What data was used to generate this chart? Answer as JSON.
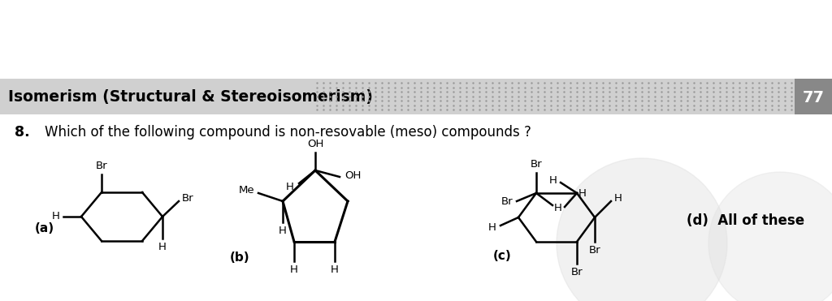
{
  "title_text": "Isomerism (Structural & Stereoisomerism)",
  "page_number": "77",
  "question_num": "8.",
  "question_body": "Which of the following compound is non-resovable (meso) compounds ?",
  "bg_color": "#ffffff",
  "header_bg": "#d0d0d0",
  "dots_color": "#999999",
  "page_box_color": "#888888",
  "fig_width": 10.24,
  "fig_height": 3.71
}
